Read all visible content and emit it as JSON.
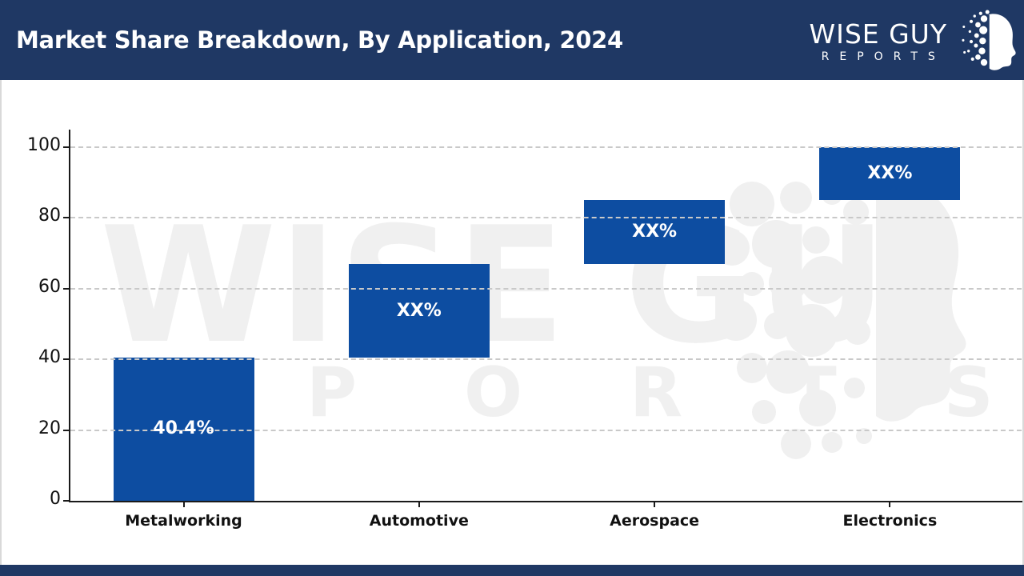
{
  "header": {
    "title": "Market Share Breakdown, By Application, 2024",
    "bg_color": "#1f3864",
    "logo": {
      "name": "WISE GUY",
      "sub": "REPORTS"
    }
  },
  "watermark": {
    "line1": "WISE GU",
    "line2": "P O R T S"
  },
  "chart_data": {
    "type": "bar",
    "subtype": "floating-waterfall",
    "title": "Market Share Breakdown, By Application, 2024",
    "categories": [
      "Metalworking",
      "Automotive",
      "Aerospace",
      "Electronics"
    ],
    "segments": [
      {
        "category": "Metalworking",
        "start": 0,
        "end": 40.4,
        "label": "40.4%"
      },
      {
        "category": "Automotive",
        "start": 40.4,
        "end": 67,
        "label": "XX%"
      },
      {
        "category": "Aerospace",
        "start": 67,
        "end": 85,
        "label": "XX%"
      },
      {
        "category": "Electronics",
        "start": 85,
        "end": 100,
        "label": "XX%"
      }
    ],
    "yticks": [
      0,
      20,
      40,
      60,
      80,
      100
    ],
    "ylim": [
      0,
      105
    ],
    "bar_color": "#0d4da1",
    "bar_label_color": "#ffffff",
    "grid": {
      "axis": "y",
      "style": "dashed",
      "color": "#c9c9c9",
      "above_bars": true
    },
    "legend": "none"
  },
  "footer": {
    "bg_color": "#1f3864"
  }
}
